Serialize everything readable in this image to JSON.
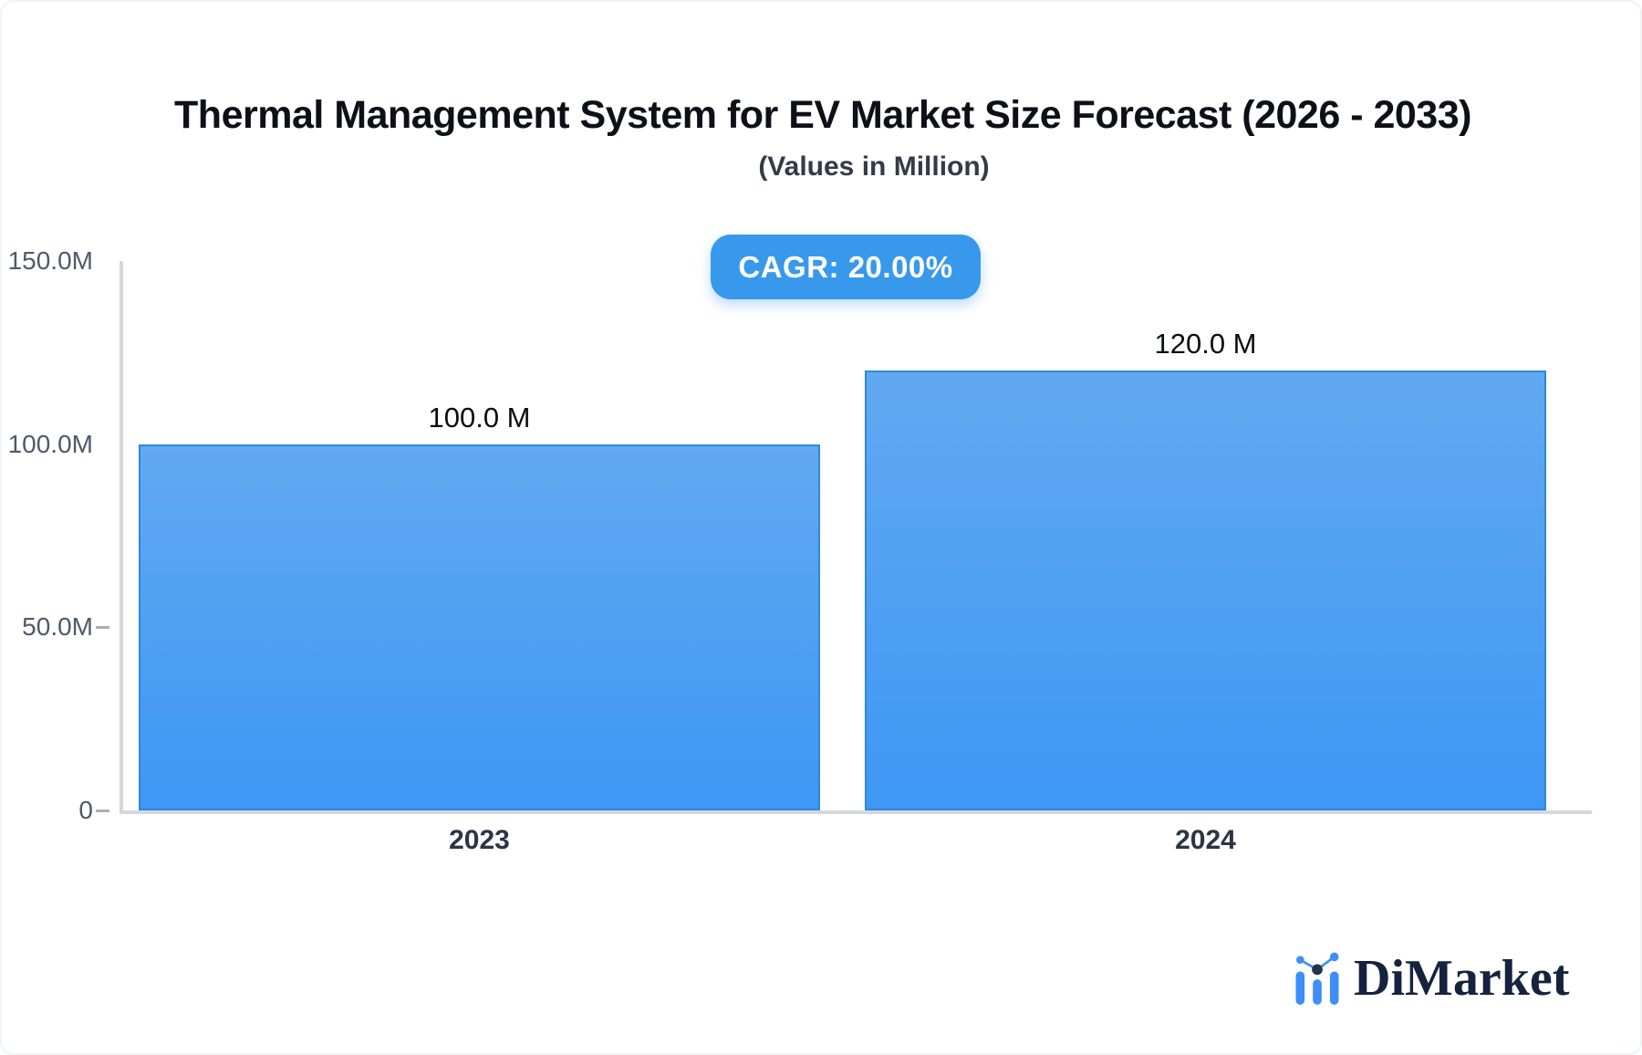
{
  "header": {
    "title": "Thermal Management System for EV Market Size Forecast (2026 - 2033)",
    "subtitle": "(Values in Million)",
    "cagr_badge": "CAGR: 20.00%"
  },
  "chart_data": {
    "type": "bar",
    "categories": [
      "2023",
      "2024"
    ],
    "values": [
      100,
      120
    ],
    "value_labels": [
      "100.0 M",
      "120.0 M"
    ],
    "title": "Thermal Management System for EV Market Size Forecast (2026 - 2033)",
    "subtitle": "(Values in Million)",
    "xlabel": "",
    "ylabel": "",
    "unit": "Million",
    "ylim": [
      0,
      150
    ],
    "y_ticks": [
      {
        "label": "150.0M",
        "value": 150,
        "tick_mark": false
      },
      {
        "label": "100.0M",
        "value": 100,
        "tick_mark": false
      },
      {
        "label": "50.0M",
        "value": 50,
        "tick_mark": true
      },
      {
        "label": "0",
        "value": 0,
        "tick_mark": true
      }
    ],
    "grid": false,
    "legend": false
  },
  "colors": {
    "badge_bg": "#3898ec",
    "bar_gradient_top": "#61a9f1",
    "bar_gradient_bottom": "#3e97f4",
    "bar_border": "#2d87e2",
    "axis_line": "#d4d8de",
    "tick_mark": "#a8b0ba",
    "y_label_text": "#4e5a6a",
    "x_label_text": "#2d3545",
    "value_label_text": "#0c0d0f",
    "logo_navy": "#16233e",
    "logo_blue": "#3e8ef7"
  },
  "footer": {
    "logo_text": "DiMarket"
  }
}
